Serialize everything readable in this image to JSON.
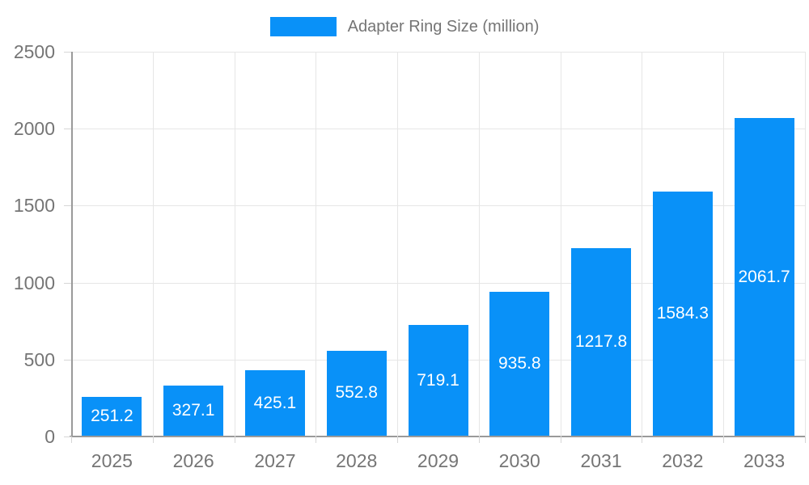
{
  "legend": {
    "label": "Adapter Ring Size (million)"
  },
  "colors": {
    "bar": "#0991f8",
    "bar_value_text": "#ffffff",
    "axis_text": "#757575",
    "axis_line": "#9a9a9a",
    "grid_line": "#e6e6e6"
  },
  "chart_data": {
    "type": "bar",
    "title": "Adapter Ring Size (million)",
    "series_name": "Adapter Ring Size (million)",
    "categories": [
      "2025",
      "2026",
      "2027",
      "2028",
      "2029",
      "2030",
      "2031",
      "2032",
      "2033"
    ],
    "values": [
      251.2,
      327.1,
      425.1,
      552.8,
      719.1,
      935.8,
      1217.8,
      1584.3,
      2061.7
    ],
    "data_labels": [
      "251.2",
      "327.1",
      "425.1",
      "552.8",
      "719.1",
      "935.8",
      "1217.8",
      "1584.3",
      "2061.7"
    ],
    "xlabel": "",
    "ylabel": "",
    "ylim": [
      0,
      2500
    ],
    "yticks": [
      0,
      500,
      1000,
      1500,
      2000,
      2500
    ],
    "grid": true,
    "legend_position": "top-center",
    "bar_color": "#0991f8",
    "value_label_position": "inside-center"
  }
}
